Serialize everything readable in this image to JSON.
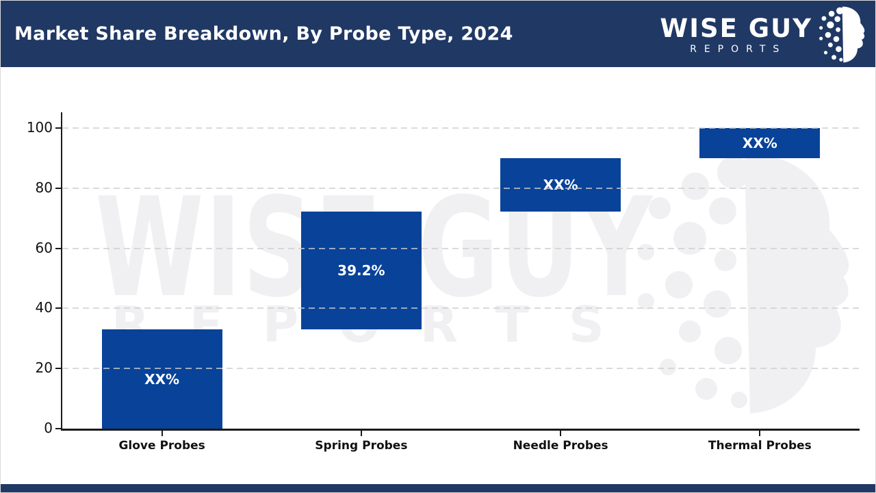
{
  "header": {
    "title": "Market Share Breakdown, By Probe Type, 2024",
    "logo": {
      "line1": "WISE GUY",
      "line2": "REPORTS"
    },
    "bg_color": "#203864"
  },
  "watermark": {
    "line1": "WISE GUY",
    "line2": "REPORTS"
  },
  "chart_data": {
    "type": "bar",
    "subtype": "waterfall",
    "title": "Market Share Breakdown, By Probe Type, 2024",
    "xlabel": "",
    "ylabel": "",
    "categories": [
      "Glove Probes",
      "Spring Probes",
      "Needle Probes",
      "Thermal Probes"
    ],
    "segments": [
      {
        "category": "Glove Probes",
        "from": 0,
        "to": 33,
        "label": "XX%"
      },
      {
        "category": "Spring Probes",
        "from": 33,
        "to": 72.2,
        "label": "39.2%"
      },
      {
        "category": "Needle Probes",
        "from": 72.2,
        "to": 90,
        "label": "XX%"
      },
      {
        "category": "Thermal Probes",
        "from": 90,
        "to": 100,
        "label": "XX%"
      }
    ],
    "y_ticks": [
      0,
      20,
      40,
      60,
      80,
      100
    ],
    "ylim": [
      0,
      105
    ],
    "grid": true,
    "grid_style": "dashed",
    "legend": false,
    "bar_color": "#084299",
    "label_color": "#ffffff"
  }
}
